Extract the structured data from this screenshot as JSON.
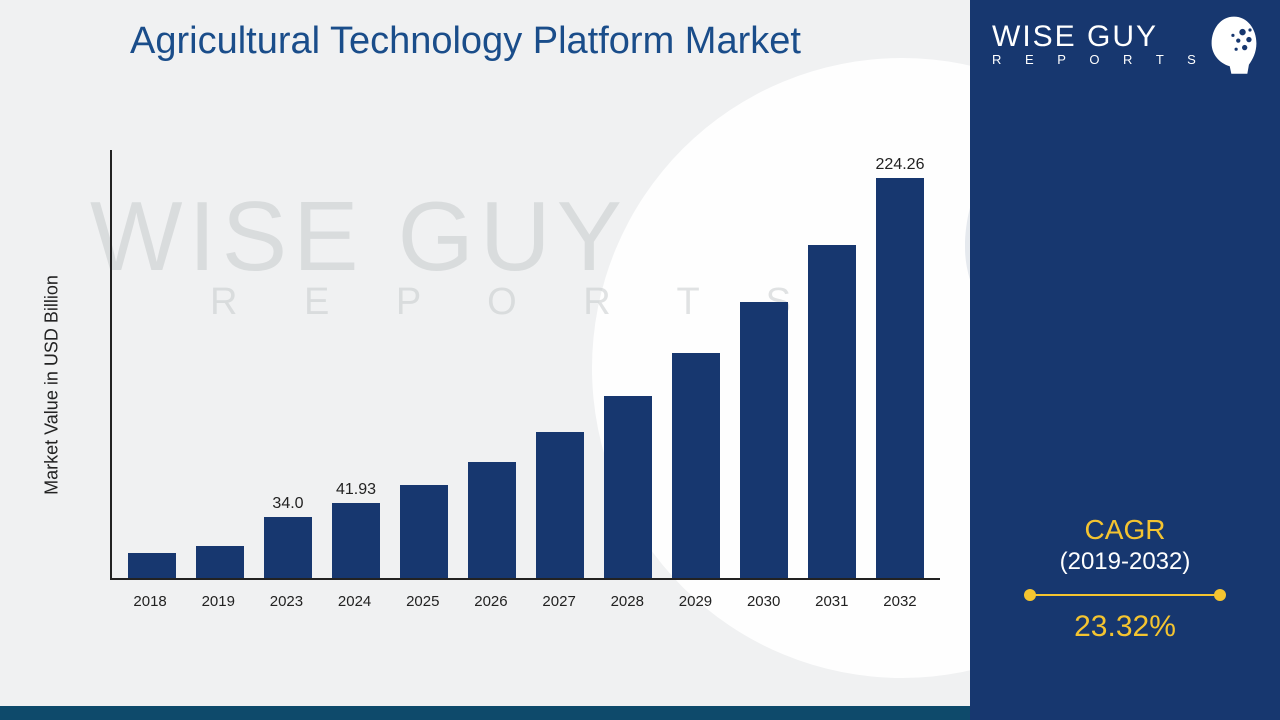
{
  "title": "Agricultural Technology Platform Market",
  "y_axis_label": "Market Value in USD Billion",
  "logo": {
    "main": "WISE GUY",
    "sub": "R E P O R T S"
  },
  "watermark": {
    "main": "WISE GUY",
    "sub": "R E P O R T S"
  },
  "cagr": {
    "label": "CAGR",
    "period": "(2019-2032)",
    "value": "23.32%"
  },
  "chart": {
    "type": "bar",
    "bar_color": "#17376f",
    "background_color": "#f0f1f2",
    "sidebar_color": "#17376f",
    "circle_color": "#ffffff",
    "bottom_bar_color": "#0e4a6b",
    "axis_color": "#222222",
    "cagr_accent": "#f4c430",
    "title_color": "#1a4d8a",
    "title_fontsize": 38,
    "label_fontsize": 18,
    "xlabel_fontsize": 15,
    "value_label_fontsize": 16,
    "ymax": 240,
    "bar_width_pct": 72,
    "categories": [
      "2018",
      "2019",
      "2023",
      "2024",
      "2025",
      "2026",
      "2027",
      "2028",
      "2029",
      "2030",
      "2031",
      "2032"
    ],
    "values": [
      14,
      18,
      34.0,
      41.93,
      52,
      65,
      82,
      102,
      126,
      155,
      187,
      224.26
    ],
    "value_labels": [
      "",
      "",
      "34.0",
      "41.93",
      "",
      "",
      "",
      "",
      "",
      "",
      "",
      "224.26"
    ]
  }
}
